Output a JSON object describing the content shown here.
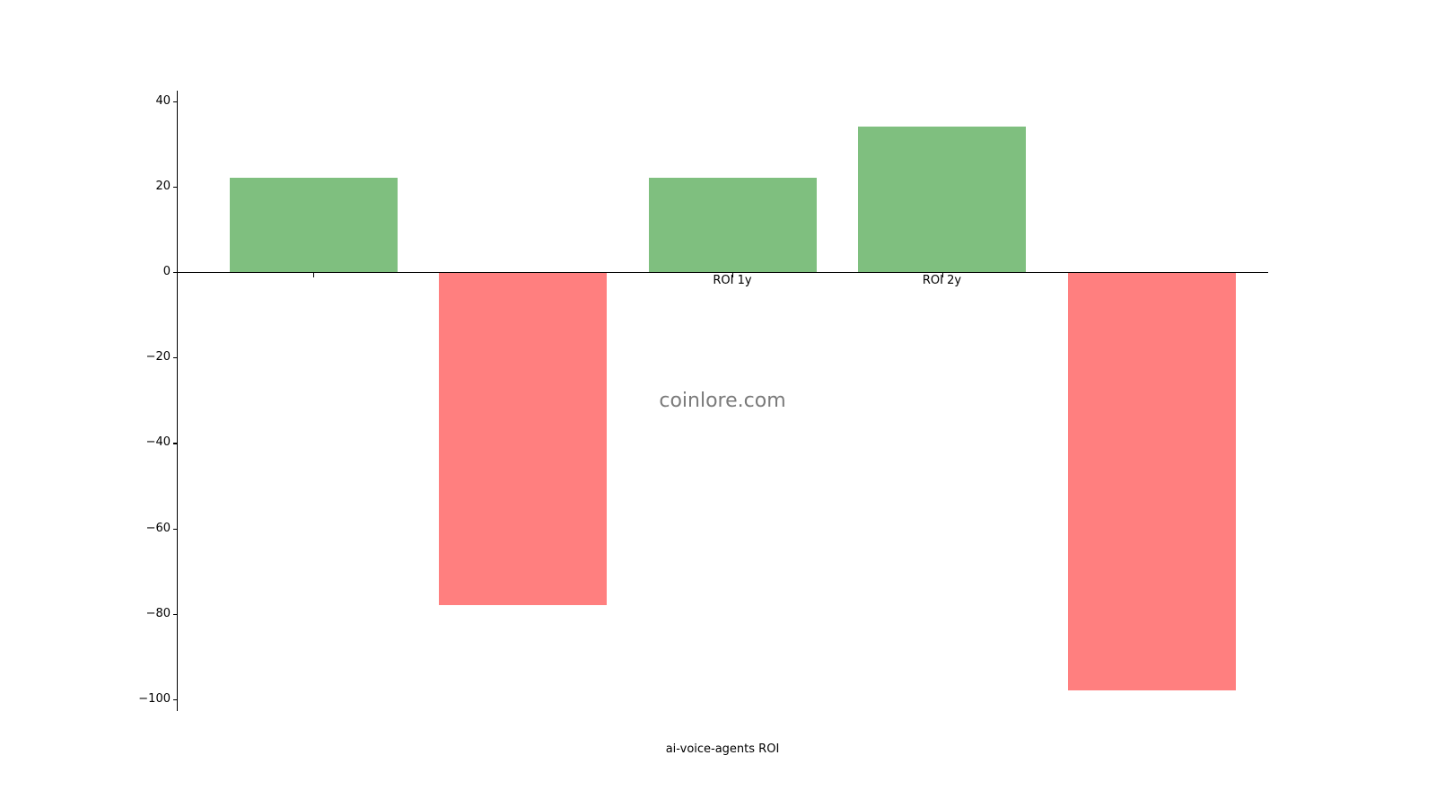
{
  "figure": {
    "watermark": "coinlore.com",
    "xlabel": "ai-voice-agents ROI"
  },
  "chart_data": {
    "type": "bar",
    "title": "",
    "xlabel": "ai-voice-agents ROI",
    "ylabel": "",
    "categories": [
      "",
      "",
      "ROI 1y",
      "ROI 2y",
      ""
    ],
    "values": [
      22,
      -78,
      22,
      34,
      -98
    ],
    "series_note": "green = positive ROI, red = negative ROI, values in percent",
    "positive_color": "#7fbf7f",
    "negative_color": "#ff7f7f",
    "axis_color": "#000000",
    "watermark": "coinlore.com",
    "watermark_color": "#7a7a7a",
    "yticks": [
      40,
      20,
      0,
      -20,
      -40,
      -60,
      -80,
      -100
    ],
    "ytick_labels": [
      "40",
      "20",
      "0",
      "−20",
      "−40",
      "−60",
      "−80",
      "−100"
    ],
    "ylim": [
      -102,
      43
    ],
    "grid": false,
    "legend_position": "none"
  }
}
